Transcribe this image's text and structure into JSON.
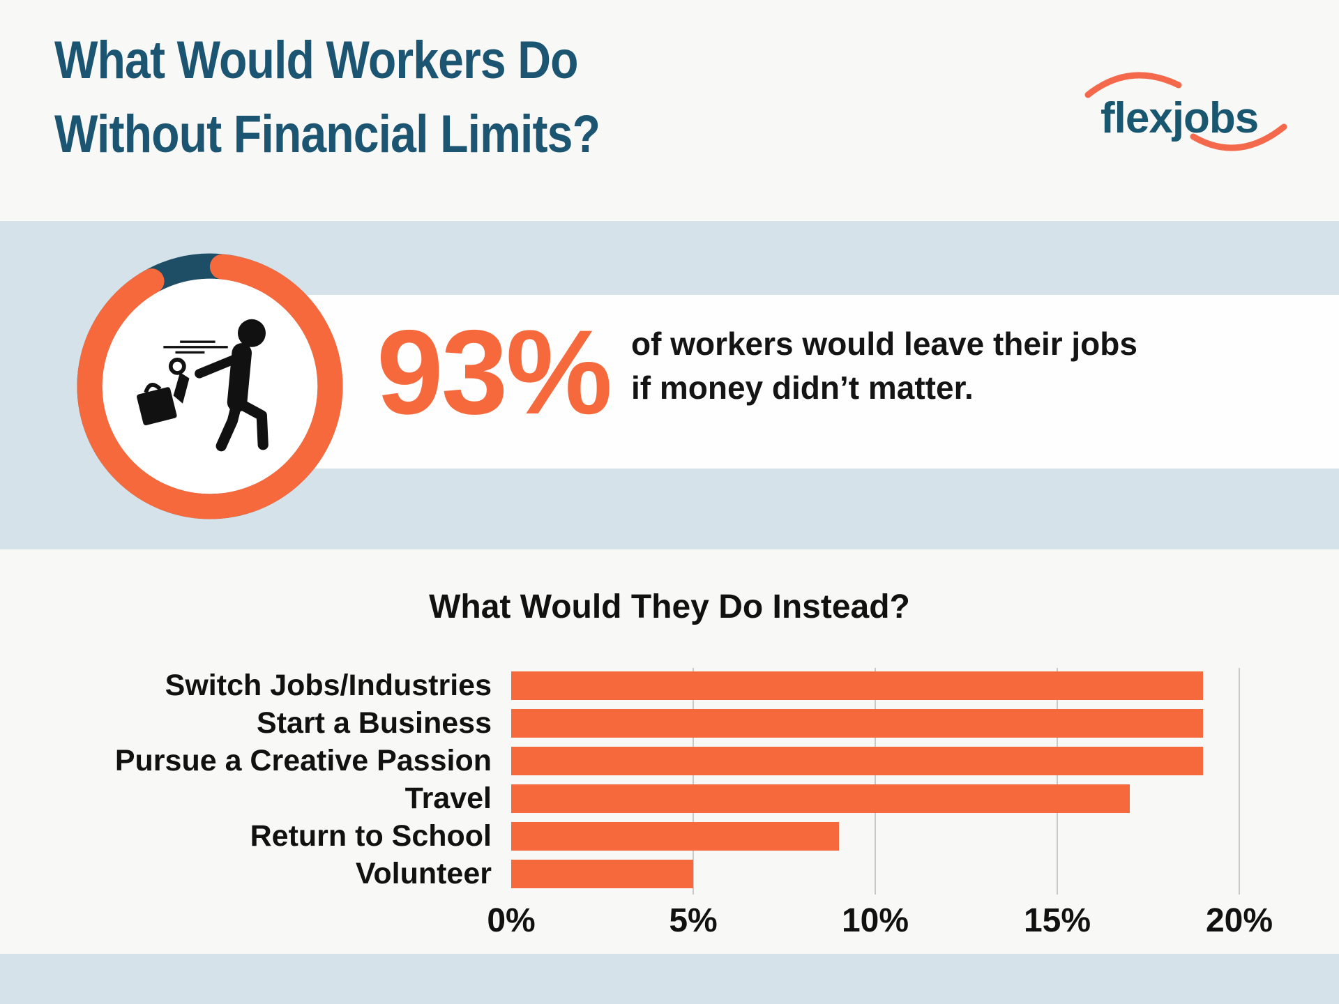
{
  "page": {
    "title_line1": "What Would Workers Do",
    "title_line2": "Without Financial Limits?"
  },
  "logo": {
    "text": "flexjobs"
  },
  "hero": {
    "stat_value": "93%",
    "caption_line1": "of workers would leave their jobs",
    "caption_line2": "if money didn’t matter.",
    "donut": {
      "percent_filled": 93,
      "ring_color": "#F6693C",
      "remainder_color": "#1D4E66",
      "icon": "person-leaving-job-icon"
    }
  },
  "chart_data": {
    "type": "bar",
    "orientation": "horizontal",
    "title": "What Would They Do Instead?",
    "categories": [
      "Switch Jobs/Industries",
      "Start a Business",
      "Pursue a Creative Passion",
      "Travel",
      "Return to School",
      "Volunteer"
    ],
    "values": [
      19,
      19,
      19,
      17,
      9,
      5
    ],
    "unit": "%",
    "x_ticks": [
      "0%",
      "5%",
      "10%",
      "15%",
      "20%"
    ],
    "xlim": [
      0,
      20
    ],
    "grid": true,
    "legend": false,
    "bar_color": "#F6693C",
    "gridline_color": "#C9C9C9"
  },
  "colors": {
    "accent_orange": "#F6693C",
    "title_teal": "#1C5571",
    "donut_remainder_teal": "#1D4E66",
    "band_blue": "#D6E2E9",
    "background_offwhite": "#F8F8F6",
    "text_black": "#111111"
  }
}
